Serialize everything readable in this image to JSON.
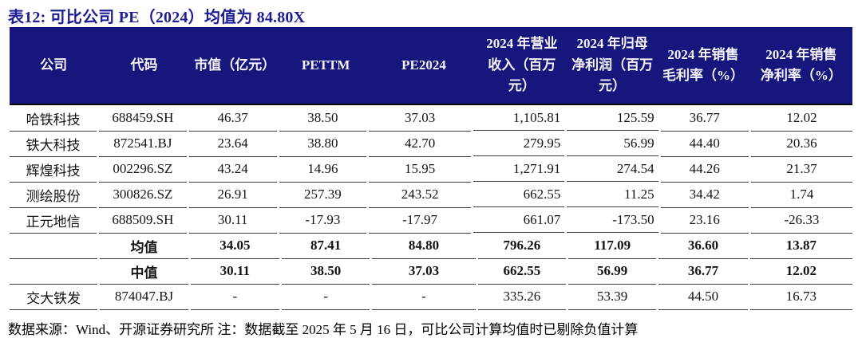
{
  "title": "表12:  可比公司 PE（2024）均值为 84.80X",
  "colors": {
    "header_band": "#16167c",
    "title_text": "#1c1c96",
    "header_text": "#f4f4fa",
    "row_border": "#3d3d3d",
    "body_text": "#141414"
  },
  "table": {
    "headers": {
      "company": "公司",
      "code": "代码",
      "mktcap": "市值（亿元）",
      "pettm": "PETTM",
      "pe2024": "PE2024",
      "revenue": "2024 年营业\n收入（百万\n元）",
      "profit": "2024 年归母\n净利润（百万\n元）",
      "gross": "2024 年销售\n毛利率（%）",
      "net": "2024 年销售\n净利率（%）"
    },
    "rows": [
      {
        "company": "哈铁科技",
        "code": "688459.SH",
        "mktcap": "46.37",
        "pettm": "38.50",
        "pe2024": "37.03",
        "revenue": "1,105.81",
        "profit": "125.59",
        "gross": "36.77",
        "net": "12.02"
      },
      {
        "company": "铁大科技",
        "code": "872541.BJ",
        "mktcap": "23.64",
        "pettm": "38.80",
        "pe2024": "42.70",
        "revenue": "279.95",
        "profit": "56.99",
        "gross": "44.40",
        "net": "20.36"
      },
      {
        "company": "辉煌科技",
        "code": "002296.SZ",
        "mktcap": "43.24",
        "pettm": "14.96",
        "pe2024": "15.95",
        "revenue": "1,271.91",
        "profit": "274.54",
        "gross": "44.26",
        "net": "21.37"
      },
      {
        "company": "测绘股份",
        "code": "300826.SZ",
        "mktcap": "26.91",
        "pettm": "257.39",
        "pe2024": "243.52",
        "revenue": "662.55",
        "profit": "11.25",
        "gross": "34.42",
        "net": "1.74"
      },
      {
        "company": "正元地信",
        "code": "688509.SH",
        "mktcap": "30.11",
        "pettm": "-17.93",
        "pe2024": "-17.97",
        "revenue": "661.07",
        "profit": "-173.50",
        "gross": "23.16",
        "net": "-26.33"
      },
      {
        "company": "",
        "code": "均值",
        "mktcap": "34.05",
        "pettm": "87.41",
        "pe2024": "84.80",
        "revenue": "796.26",
        "profit": "117.09",
        "gross": "36.60",
        "net": "13.87"
      },
      {
        "company": "",
        "code": "中值",
        "mktcap": "30.11",
        "pettm": "38.50",
        "pe2024": "37.03",
        "revenue": "662.55",
        "profit": "56.99",
        "gross": "36.77",
        "net": "12.02"
      },
      {
        "company": "交大铁发",
        "code": "874047.BJ",
        "mktcap": "-",
        "pettm": "-",
        "pe2024": "-",
        "revenue": "335.26",
        "profit": "53.39",
        "gross": "44.50",
        "net": "16.73"
      }
    ]
  },
  "footnote": "数据来源：Wind、开源证券研究所  注：数据截至 2025 年 5 月 16 日，可比公司计算均值时已剔除负值计算"
}
